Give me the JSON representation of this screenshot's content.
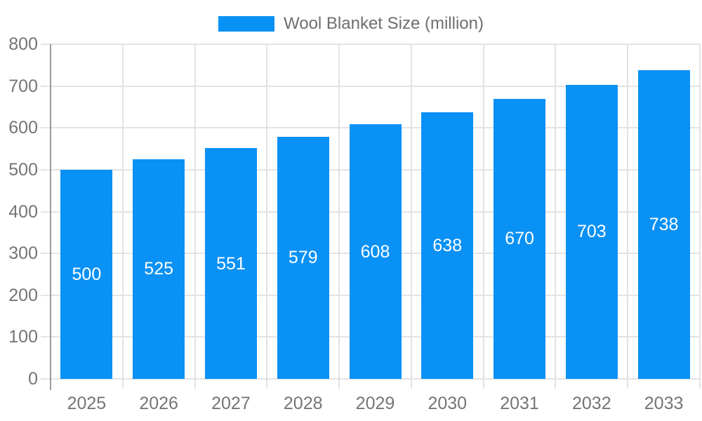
{
  "legend": {
    "label": "Wool Blanket Size (million)"
  },
  "colors": {
    "bar": "#0a91f5",
    "grid": "#e3e3e3",
    "axis_line": "#9a9a9a",
    "axis_text": "#757575",
    "bar_label_text": "#ffffff"
  },
  "chart_data": {
    "type": "bar",
    "title": "Wool Blanket Size (million)",
    "series": [
      {
        "name": "Wool Blanket Size (million)",
        "values": [
          500,
          525,
          551,
          579,
          608,
          638,
          670,
          703,
          738
        ]
      }
    ],
    "categories": [
      "2025",
      "2026",
      "2027",
      "2028",
      "2029",
      "2030",
      "2031",
      "2032",
      "2033"
    ],
    "xlabel": "",
    "ylabel": "",
    "ylim": [
      0,
      800
    ],
    "y_ticks": [
      0,
      100,
      200,
      300,
      400,
      500,
      600,
      700,
      800
    ],
    "grid": "horizontal-and-vertical",
    "legend_position": "top-center",
    "bar_value_labels": "inside-center"
  }
}
